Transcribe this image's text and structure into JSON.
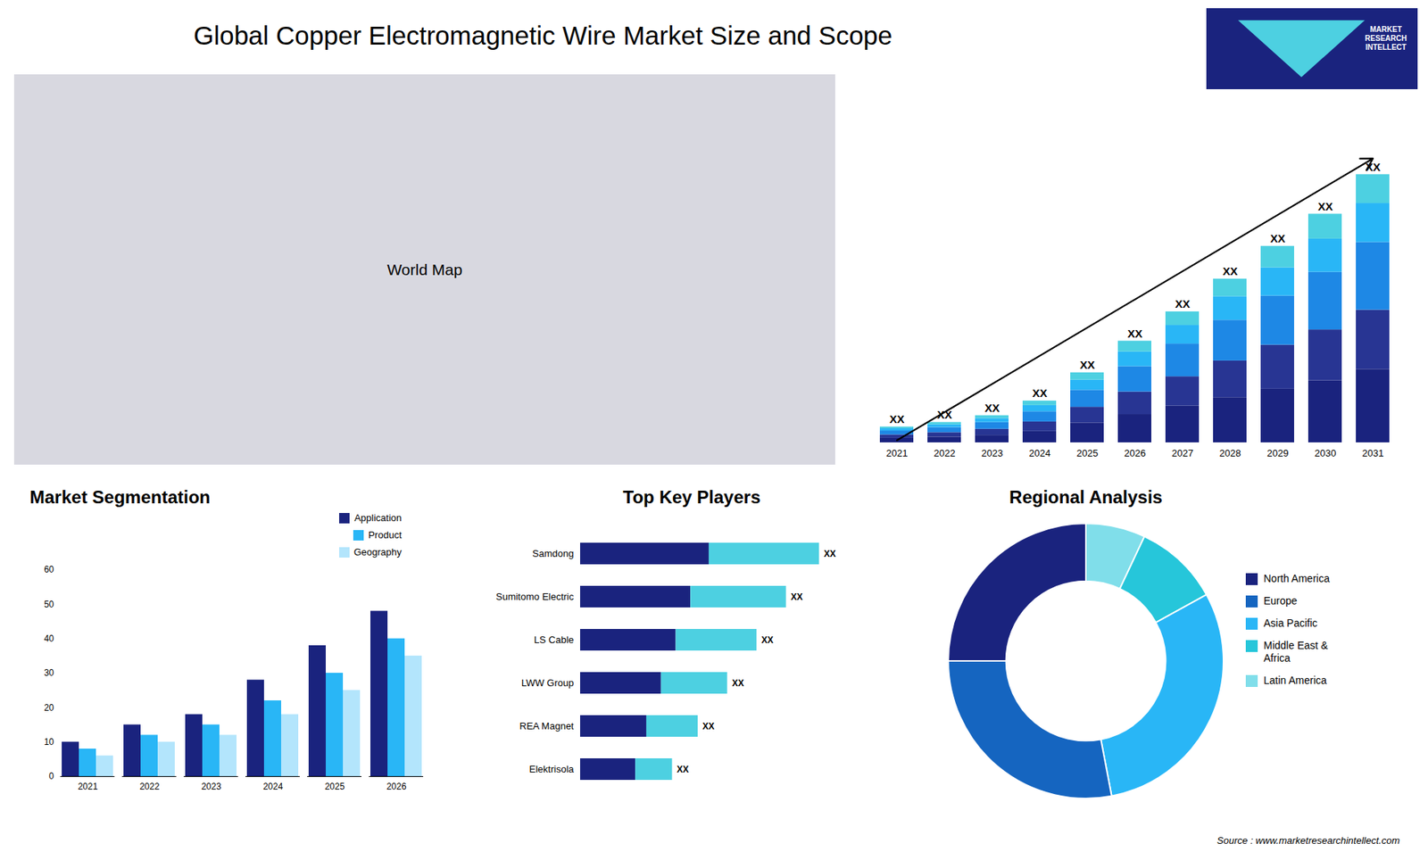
{
  "chart_data": [
    {
      "type": "bar",
      "stacked": true,
      "title": "Global Copper Electromagnetic Wire Market Size and Scope",
      "annotations": [
        "World Map",
        "MARKET\nRESEARCH\nINTELLECT",
        "Source : www.marketresearchintellect.com"
      ],
      "categories": [
        "2021",
        "2022",
        "2023",
        "2024",
        "2025",
        "2026",
        "2027",
        "2028",
        "2029",
        "2030",
        "2031"
      ],
      "series": [
        {
          "color": "#1a237e",
          "values": [
            0.8,
            1.0,
            1.3,
            2.0,
            3.5,
            5.0,
            6.5,
            8.0,
            9.5,
            11.0,
            13.0
          ]
        },
        {
          "color": "#283593",
          "values": [
            0.6,
            0.8,
            1.1,
            1.7,
            2.8,
            4.0,
            5.2,
            6.5,
            7.8,
            9.0,
            10.5
          ]
        },
        {
          "color": "#1e88e5",
          "values": [
            0.7,
            0.9,
            1.2,
            1.8,
            3.0,
            4.5,
            5.8,
            7.2,
            8.7,
            10.2,
            12.0
          ]
        },
        {
          "color": "#29b6f6",
          "values": [
            0.4,
            0.5,
            0.7,
            1.1,
            1.8,
            2.6,
            3.3,
            4.2,
            5.0,
            5.9,
            6.9
          ]
        },
        {
          "color": "#4dd0e1",
          "values": [
            0.3,
            0.4,
            0.5,
            0.8,
            1.3,
            1.9,
            2.4,
            3.1,
            3.8,
            4.4,
            5.1
          ]
        }
      ],
      "value_labels": [
        "XX",
        "XX",
        "XX",
        "XX",
        "XX",
        "XX",
        "XX",
        "XX",
        "XX",
        "XX",
        "XX"
      ],
      "ylim": [
        0,
        57.95
      ],
      "tick_labels": "x"
    },
    {
      "type": "bar",
      "title": "Market Segmentation",
      "categories": [
        "2021",
        "2022",
        "2023",
        "2024",
        "2025",
        "2026"
      ],
      "series": [
        {
          "name": "Application",
          "color": "#1a237e",
          "values": [
            10,
            15,
            18,
            28,
            38,
            48
          ]
        },
        {
          "name": "Product",
          "color": "#29b6f6",
          "values": [
            8,
            12,
            15,
            22,
            30,
            40
          ]
        },
        {
          "name": "Geography",
          "color": "#b3e5fc",
          "values": [
            6,
            10,
            12,
            18,
            25,
            35
          ]
        }
      ],
      "ylim": [
        0,
        60
      ],
      "yticks": [
        0,
        10,
        20,
        30,
        40,
        50,
        60
      ],
      "legend": "upper right",
      "grid": false
    },
    {
      "type": "bar",
      "orientation": "horizontal",
      "stacked": true,
      "title": "Top Key Players",
      "categories": [
        "Samdong",
        "Sumitomo Electric",
        "LS Cable",
        "LWW Group",
        "REA Magnet",
        "Elektrisola"
      ],
      "series": [
        {
          "color": "#1a237e",
          "values": [
            0.35,
            0.3,
            0.26,
            0.22,
            0.18,
            0.15
          ]
        },
        {
          "color": "#4dd0e1",
          "values": [
            0.3,
            0.26,
            0.22,
            0.18,
            0.14,
            0.1
          ]
        }
      ],
      "value_labels": [
        "XX",
        "XX",
        "XX",
        "XX",
        "XX",
        "XX"
      ],
      "xlim": [
        0,
        0.85
      ],
      "tick_labels": "y"
    },
    {
      "type": "pie",
      "title": "Regional Analysis",
      "categories": [
        "Latin America",
        "Middle East &\nAfrica",
        "Asia Pacific",
        "Europe",
        "North America"
      ],
      "values": [
        7,
        10,
        30,
        28,
        25
      ],
      "colors": [
        "#80deea",
        "#26c6da",
        "#29b6f6",
        "#1565c0",
        "#1a237e"
      ],
      "legend": "right"
    }
  ]
}
